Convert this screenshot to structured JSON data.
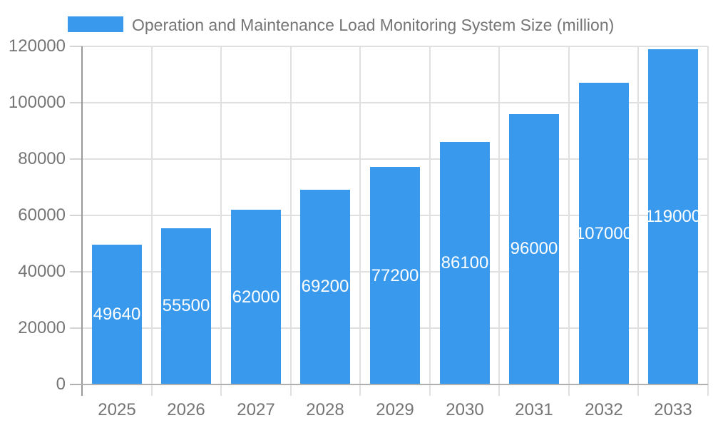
{
  "chart_data": {
    "type": "bar",
    "title": "Operation and Maintenance Load Monitoring System Size (million)",
    "categories": [
      "2025",
      "2026",
      "2027",
      "2028",
      "2029",
      "2030",
      "2031",
      "2032",
      "2033"
    ],
    "values": [
      49640,
      55500,
      62000,
      69200,
      77200,
      86100,
      96000,
      107000,
      119000
    ],
    "bar_value_labels": [
      "49640",
      "55500",
      "62000",
      "69200",
      "77200",
      "86100",
      "96000",
      "107000",
      "119000"
    ],
    "xlabel": "",
    "ylabel": "",
    "ylim": [
      0,
      120000
    ],
    "yticks": [
      0,
      20000,
      40000,
      60000,
      80000,
      100000,
      120000
    ],
    "ytick_labels": [
      "0",
      "20000",
      "40000",
      "60000",
      "80000",
      "100000",
      "120000"
    ],
    "grid": true,
    "legend_position": "top"
  },
  "legend": {
    "label": "Operation and Maintenance Load Monitoring System Size (million)"
  },
  "colors": {
    "bar": "#3999EC",
    "legend_text": "#757575",
    "axis_text": "#757575",
    "bar_label_text": "#ffffff",
    "gridline": "#e0e0e0",
    "axis_tick": "#d4d4d4",
    "y_axis_line": "#999999",
    "baseline": "#b0b0b0",
    "background": "#ffffff"
  }
}
